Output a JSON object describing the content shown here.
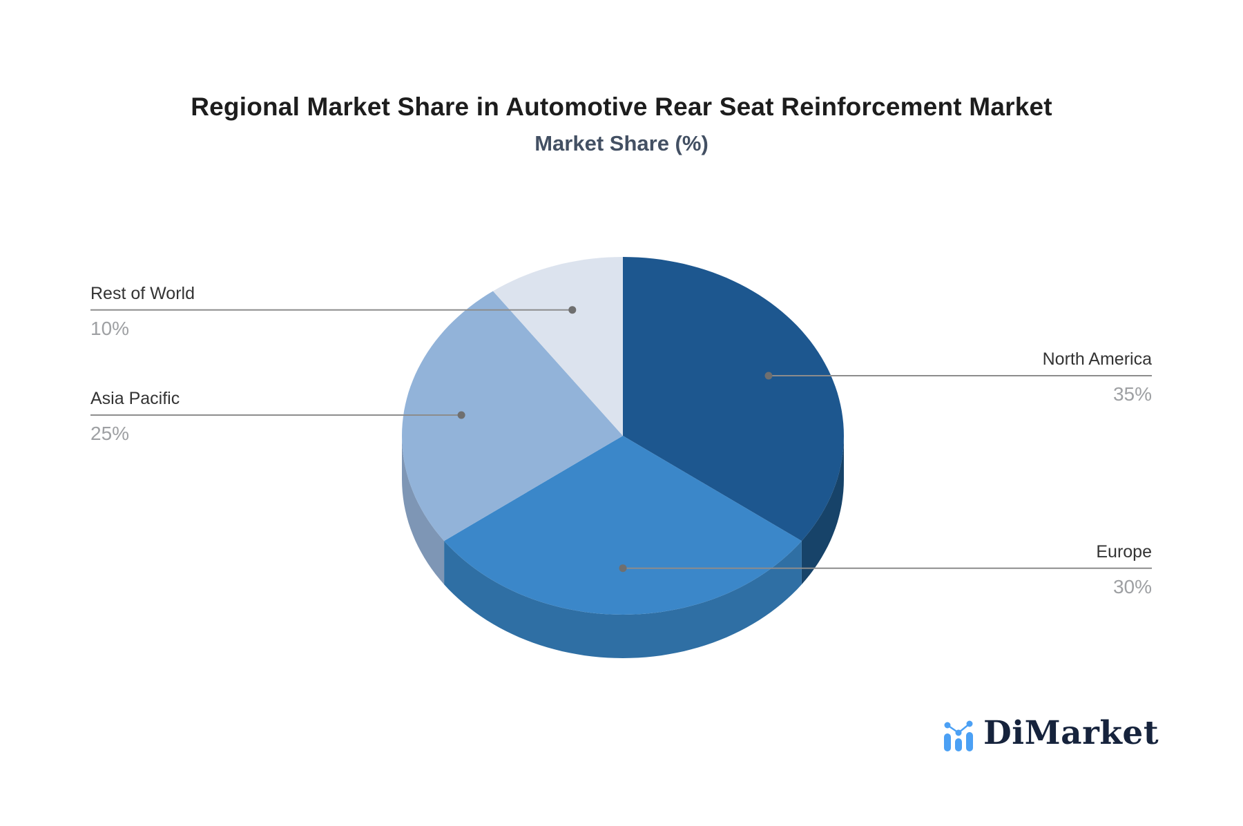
{
  "header": {
    "title": "Regional Market Share in Automotive Rear Seat Reinforcement Market",
    "subtitle": "Market Share (%)"
  },
  "branding": {
    "logo_text": "DiMarket",
    "logo_icon": "bar-chart-trend-icon",
    "logo_text_color": "#16233c",
    "logo_accent_color": "#4ba0f4"
  },
  "chart_data": {
    "type": "pie",
    "style": "3d",
    "title": "Regional Market Share in Automotive Rear Seat Reinforcement Market",
    "subtitle": "Market Share (%)",
    "unit": "%",
    "start_angle_deg": 0,
    "direction": "clockwise",
    "legend": "none",
    "series": [
      {
        "name": "North America",
        "value": 35,
        "value_label": "35%",
        "color": "#1d578f",
        "wall_color": "#174369",
        "label_side": "right"
      },
      {
        "name": "Europe",
        "value": 30,
        "value_label": "30%",
        "color": "#3b87c9",
        "wall_color": "#2f6fa4",
        "label_side": "right"
      },
      {
        "name": "Asia Pacific",
        "value": 25,
        "value_label": "25%",
        "color": "#92b3d9",
        "wall_color": "#7e96b5",
        "label_side": "left"
      },
      {
        "name": "Rest of World",
        "value": 10,
        "value_label": "10%",
        "color": "#dce3ee",
        "wall_color": null,
        "label_side": "left"
      }
    ],
    "leader_line_color": "#8c8c8c",
    "leader_dot_color": "#6f6f6f",
    "label_name_color": "#333333",
    "label_value_color": "#9ea0a3"
  }
}
